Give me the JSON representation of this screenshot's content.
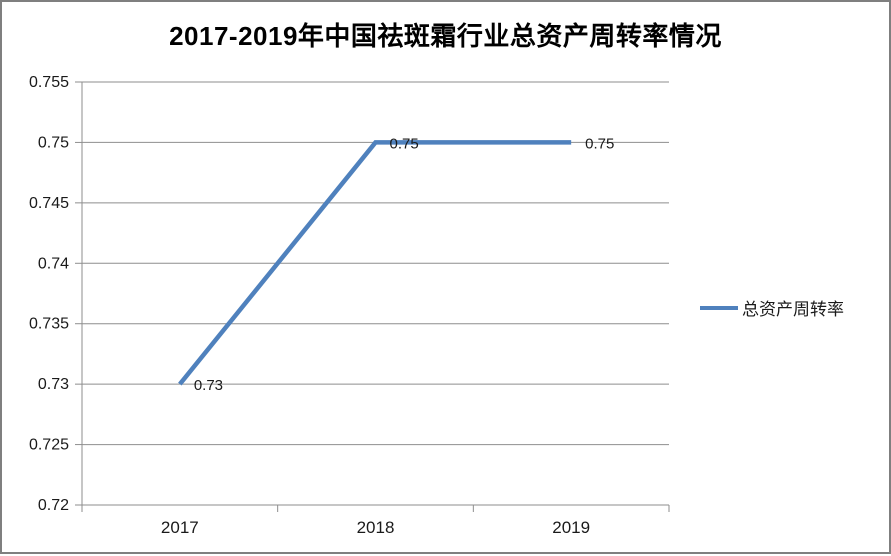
{
  "title": "2017-2019年中国祛斑霜行业总资产周转率情况",
  "legend": {
    "items": [
      {
        "label": "总资产周转率",
        "color": "#4F81BD"
      }
    ]
  },
  "chart_data": {
    "type": "line",
    "title": "2017-2019年中国祛斑霜行业总资产周转率情况",
    "categories": [
      "2017",
      "2018",
      "2019"
    ],
    "series": [
      {
        "name": "总资产周转率",
        "values": [
          0.73,
          0.75,
          0.75
        ],
        "data_labels": [
          "0.73",
          "0.75",
          "0.75"
        ],
        "color": "#4F81BD"
      }
    ],
    "ylim": [
      0.72,
      0.755
    ],
    "ytick_labels": [
      "0.755",
      "0.75",
      "0.745",
      "0.74",
      "0.735",
      "0.73",
      "0.725",
      "0.72"
    ],
    "ytick_values": [
      0.755,
      0.75,
      0.745,
      0.74,
      0.735,
      0.73,
      0.725,
      0.72
    ],
    "grid": true,
    "legend_position": "right",
    "colors": {
      "line": "#4F81BD",
      "grid": "#8e8e8e",
      "axis": "#8e8e8e",
      "text": "#1a1a1a",
      "frame_border": "#7f7f7f",
      "background": "#ffffff"
    }
  }
}
